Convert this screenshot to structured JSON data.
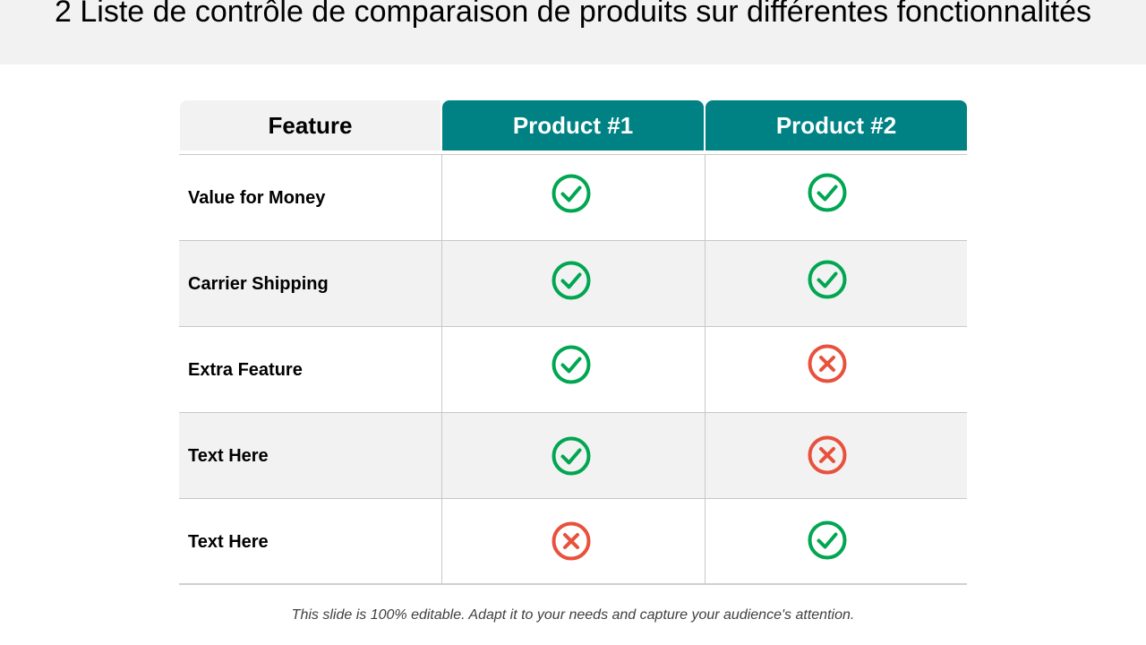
{
  "title": "2 Liste de contrôle de comparaison de produits sur différentes fonctionnalités",
  "table": {
    "headers": [
      "Feature",
      "Product #1",
      "Product #2"
    ],
    "rows": [
      {
        "label": "Value  for Money",
        "p1": "check",
        "p2": "check"
      },
      {
        "label": "Carrier  Shipping",
        "p1": "check",
        "p2": "check"
      },
      {
        "label": "Extra Feature",
        "p1": "check",
        "p2": "cross"
      },
      {
        "label": "Text Here",
        "p1": "check",
        "p2": "cross"
      },
      {
        "label": "Text Here",
        "p1": "cross",
        "p2": "check"
      }
    ]
  },
  "icons": {
    "check": "check-circle-icon",
    "cross": "x-circle-icon"
  },
  "colors": {
    "header": "#008285",
    "check": "#00a651",
    "cross": "#e8513c",
    "alt_row": "#f2f2f2"
  },
  "footer": "This slide is 100% editable. Adapt it to your needs and capture your audience's attention."
}
